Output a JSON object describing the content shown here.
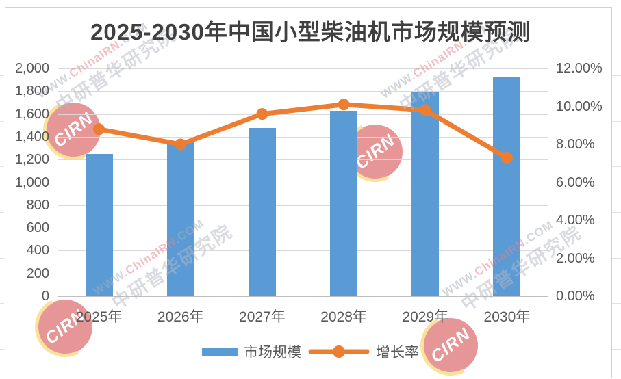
{
  "title": "2025-2030年中国小型柴油机市场规模预测",
  "chart_data": {
    "type": "combo-bar-line",
    "categories": [
      "2025年",
      "2026年",
      "2027年",
      "2028年",
      "2029年",
      "2030年"
    ],
    "series": [
      {
        "name": "市场规模",
        "type": "bar",
        "axis": "left",
        "values": [
          1250,
          1350,
          1480,
          1630,
          1790,
          1920
        ]
      },
      {
        "name": "增长率",
        "type": "line",
        "axis": "right",
        "values_percent": [
          8.8,
          8.0,
          9.6,
          10.1,
          9.8,
          7.3
        ]
      }
    ],
    "left_axis": {
      "min": 0,
      "max": 2000,
      "step": 200,
      "tick_labels_top_to_bottom": [
        "2,000",
        "1,800",
        "1,600",
        "1,400",
        "1,200",
        "1,000",
        "800",
        "600",
        "400",
        "200",
        "0"
      ]
    },
    "right_axis": {
      "min": 0,
      "max": 0.12,
      "step": 0.02,
      "tick_labels_top_to_bottom": [
        "12.00%",
        "10.00%",
        "8.00%",
        "6.00%",
        "4.00%",
        "2.00%",
        "0.00%"
      ]
    },
    "grid": true,
    "legend_position": "bottom",
    "colors": {
      "bar": "#5B9BD5",
      "line": "#ED7D31"
    }
  },
  "legend": {
    "items": [
      {
        "label": "市场规模",
        "swatch": "bar"
      },
      {
        "label": "增长率",
        "swatch": "line"
      }
    ]
  },
  "watermark": {
    "url_prefix": "WWW.",
    "url_mid": "ChinaIRN",
    "url_suffix": ".COM",
    "cn_text": "中研普华研究院",
    "badge_text": "CIRN"
  }
}
